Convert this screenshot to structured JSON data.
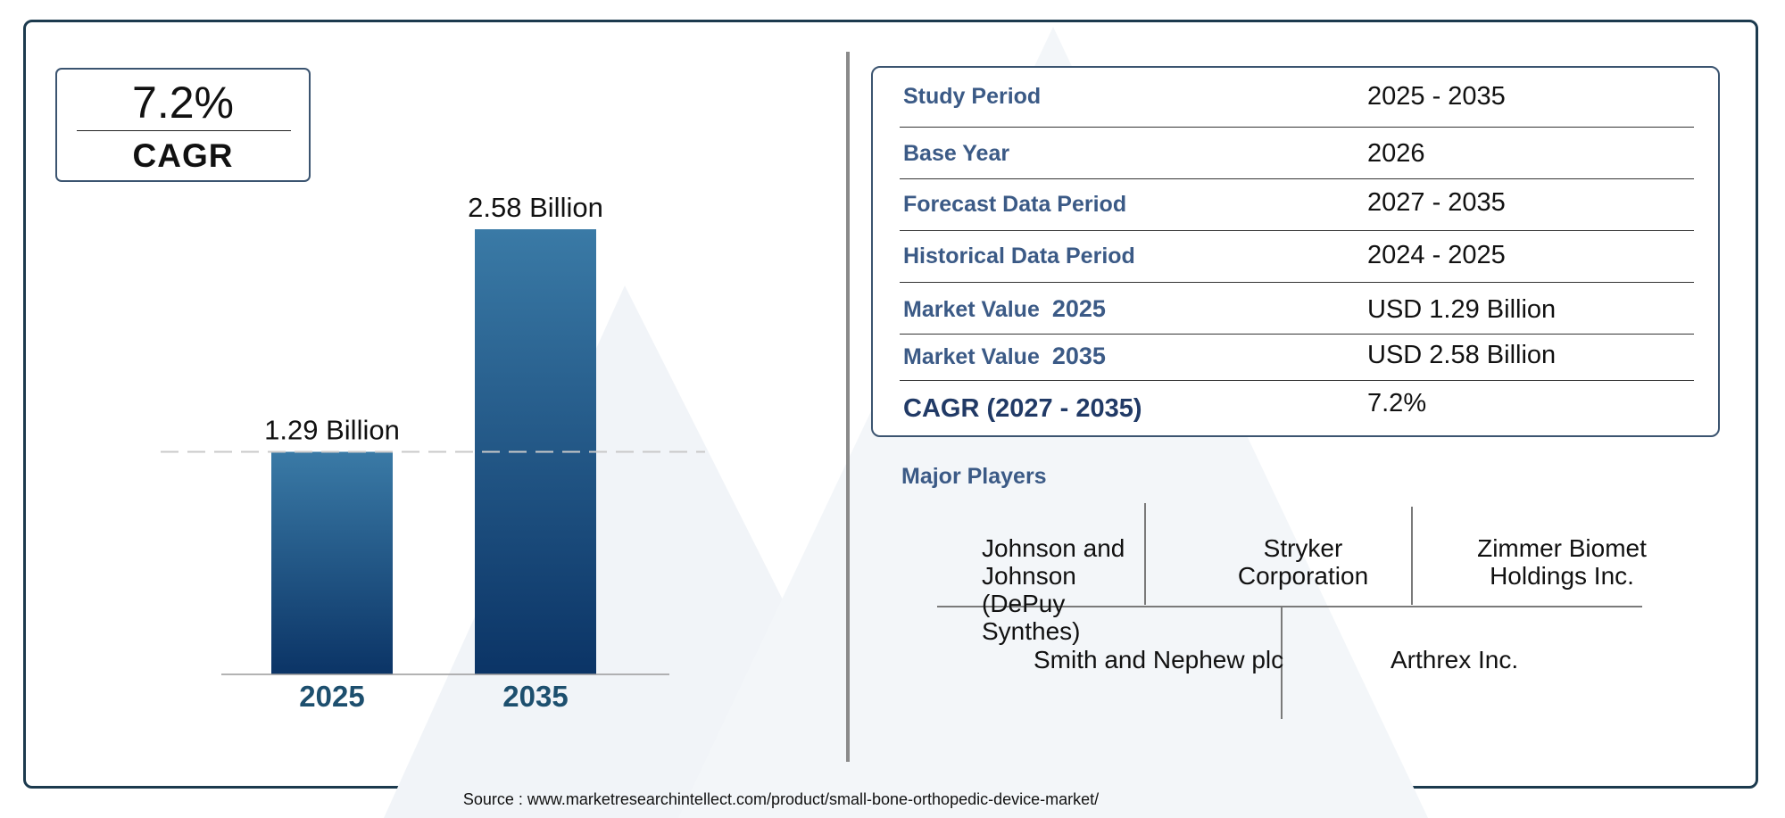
{
  "cagr_box": {
    "value": "7.2%",
    "label": "CAGR"
  },
  "chart_data": {
    "type": "bar",
    "categories": [
      "2025",
      "2035"
    ],
    "values": [
      1.29,
      2.58
    ],
    "data_labels": [
      "1.29 Billion",
      "2.58 Billion"
    ],
    "title": "",
    "xlabel": "",
    "ylabel": "",
    "ylim": [
      0,
      2.58
    ],
    "grid": false,
    "bar_color": "#0e3a6e",
    "reference_line_value": 1.29
  },
  "info_table": {
    "rows": [
      {
        "label": "Study Period",
        "value": "2025 - 2035"
      },
      {
        "label": "Base Year",
        "value": "2026"
      },
      {
        "label": "Forecast Data Period",
        "value": "2027 - 2035"
      },
      {
        "label": "Historical Data Period",
        "value": "2024 - 2025"
      },
      {
        "label": "Market Value",
        "year": "2025",
        "value": "USD 1.29 Billion"
      },
      {
        "label": "Market Value",
        "year": "2035",
        "value": "USD 2.58 Billion"
      },
      {
        "label": "CAGR (2027 - 2035)",
        "value": "7.2%"
      }
    ]
  },
  "major_players": {
    "title": "Major Players",
    "players": [
      "Johnson and Johnson (DePuy Synthes)",
      "Stryker Corporation",
      "Zimmer Biomet Holdings Inc.",
      "Smith and Nephew plc",
      "Arthrex Inc."
    ]
  },
  "source": "Source : www.marketresearchintellect.com/product/small-bone-orthopedic-device-market/",
  "colors": {
    "label_blue": "#3b5a86",
    "frame": "#1c3a4e",
    "bar_top": "#3a7aa6",
    "bar_bottom": "#0b3466"
  }
}
